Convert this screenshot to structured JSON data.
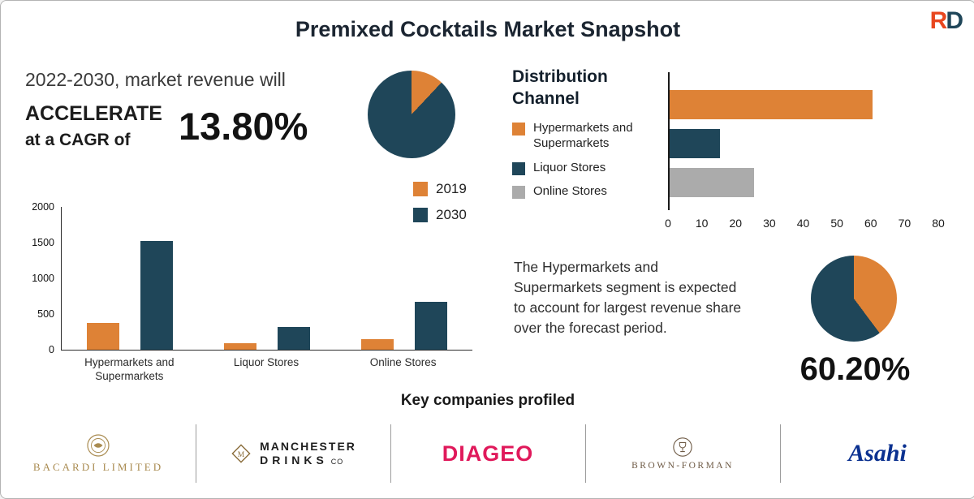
{
  "title": "Premixed Cocktails Market Snapshot",
  "logo": {
    "r": "R",
    "d": "D"
  },
  "headline": {
    "intro": "2022-2030, market revenue will",
    "accelerate": "ACCELERATE",
    "cagr_label": "at a CAGR of",
    "cagr_value": "13.80%"
  },
  "note": "The Hypermarkets and\nSupermarkets segment is expected\nto account for largest revenue share\nover the forecast period.",
  "companies_heading": "Key companies profiled",
  "companies": {
    "bacardi": "BACARDI LIMITED",
    "manchester_line1": "MANCHESTER",
    "manchester_line2": "DRINKS",
    "manchester_co": "CO",
    "manchester_icon_letter": "M",
    "diageo": "DIAGEO",
    "brown_forman": "BROWN-FORMAN",
    "asahi": "Asahi"
  },
  "chart_data": [
    {
      "type": "pie",
      "name": "market-revenue-pie-2019-vs-2030",
      "labels": [
        "2019",
        "2030"
      ],
      "values": [
        12,
        88
      ],
      "colors": [
        "#DE8236",
        "#1F4659"
      ],
      "legend_position": "below-right"
    },
    {
      "type": "bar",
      "name": "revenue-by-distribution-channel",
      "categories": [
        "Hypermarkets and Supermarkets",
        "Liquor Stores",
        "Online Stores"
      ],
      "series": [
        {
          "name": "2019",
          "color": "#DE8236",
          "values": [
            370,
            90,
            150
          ]
        },
        {
          "name": "2030",
          "color": "#1F4659",
          "values": [
            1520,
            320,
            670
          ]
        }
      ],
      "ylim": [
        0,
        2000
      ],
      "yticks": [
        0,
        500,
        1000,
        1500,
        2000
      ],
      "grid": false
    },
    {
      "type": "bar",
      "orientation": "horizontal",
      "name": "distribution-channel-share",
      "title": "Distribution Channel",
      "categories": [
        "Hypermarkets and Supermarkets",
        "Liquor Stores",
        "Online Stores"
      ],
      "values": [
        60,
        15,
        25
      ],
      "colors": [
        "#DE8236",
        "#1F4659",
        "#ABABAB"
      ],
      "xlim": [
        0,
        80
      ],
      "xticks": [
        0,
        10,
        20,
        30,
        40,
        50,
        60,
        70,
        80
      ],
      "grid": false
    },
    {
      "type": "pie",
      "name": "largest-revenue-share-pie",
      "values": [
        39.8,
        60.2
      ],
      "colors": [
        "#DE8236",
        "#1F4659"
      ],
      "callout": "60.20%"
    }
  ]
}
